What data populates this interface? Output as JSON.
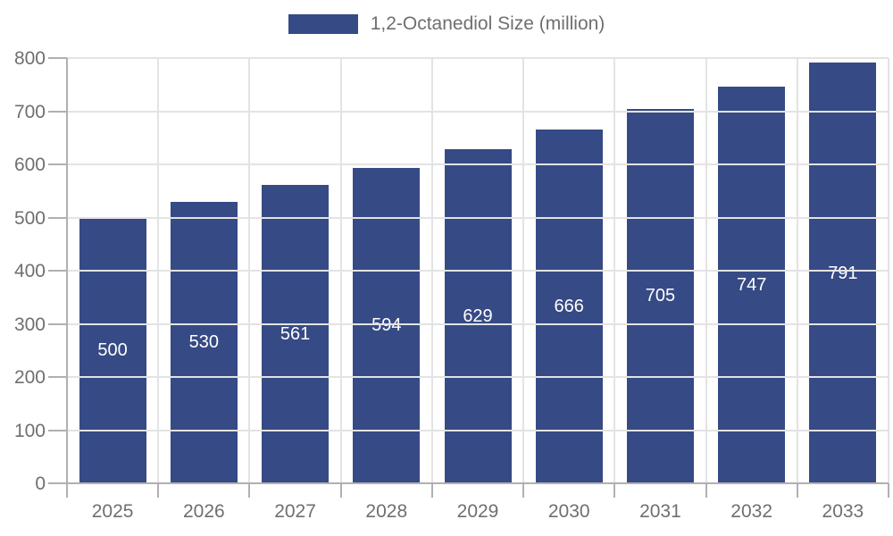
{
  "chart_data": {
    "type": "bar",
    "title": "",
    "legend": "1,2-Octanediol Size (million)",
    "categories": [
      "2025",
      "2026",
      "2027",
      "2028",
      "2029",
      "2030",
      "2031",
      "2032",
      "2033"
    ],
    "values": [
      500,
      530,
      561,
      594,
      629,
      666,
      705,
      747,
      791
    ],
    "ylim": [
      0,
      800
    ],
    "ytick_step": 100,
    "ytick_labels": [
      "0",
      "100",
      "200",
      "300",
      "400",
      "500",
      "600",
      "700",
      "800"
    ],
    "grid": true,
    "legend_position": "top-center",
    "value_labels_inside_bars": true,
    "colors": {
      "bar": "#364a85",
      "bar_value_text": "#ffffff",
      "axis_text": "#6f6f6f",
      "legend_text": "#6f6f6f",
      "grid_line": "#e3e3e3",
      "axis_line": "#b0b0b0",
      "background": "#ffffff"
    }
  }
}
